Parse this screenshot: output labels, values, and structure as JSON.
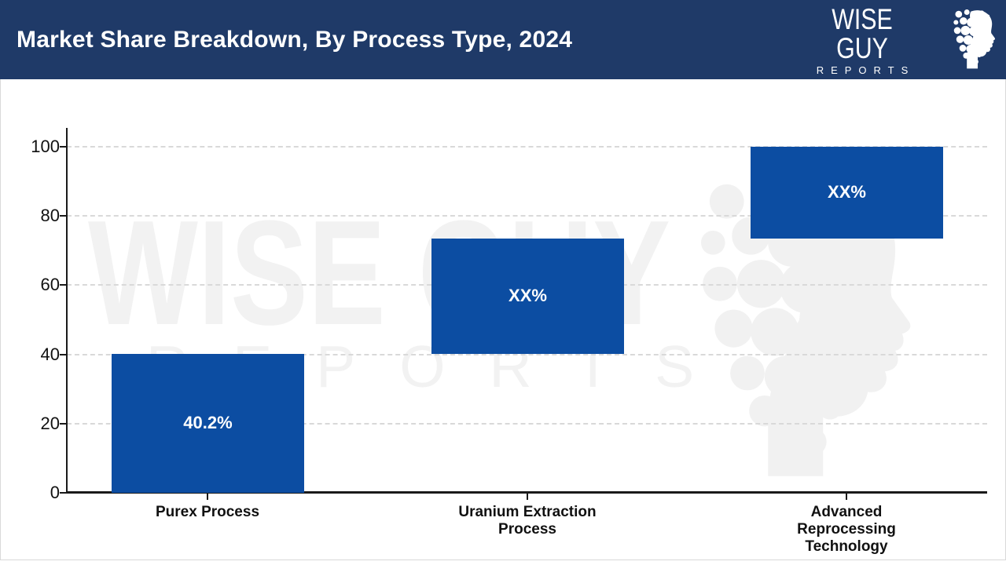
{
  "header": {
    "title": "Market Share Breakdown, By Process Type, 2024",
    "logo": {
      "name": "WISE GUY",
      "subtitle": "REPORTS",
      "face_icon": "dot-face-profile-icon"
    }
  },
  "watermark": {
    "name": "WISE GUY",
    "subtitle": "REPORTS",
    "face_icon": "dot-face-profile-icon"
  },
  "colors": {
    "header_bg": "#1f3a68",
    "header_text": "#ffffff",
    "bar_fill": "#0c4da2",
    "bar_label": "#ffffff",
    "gridline": "#d9d9d9",
    "axis": "#1a1a1a",
    "tick_label": "#111111",
    "watermark": "#f2f2f2",
    "card_border": "#d9d9d9"
  },
  "chart_data": {
    "type": "bar",
    "subtype": "waterfall",
    "title": "Market Share Breakdown, By Process Type, 2024",
    "categories": [
      "Purex Process",
      "Uranium Extraction\nProcess",
      "Advanced\nReprocessing\nTechnology"
    ],
    "segments": [
      {
        "category": "Purex Process",
        "label": "40.2%",
        "start": 0,
        "end": 40.2
      },
      {
        "category": "Uranium Extraction Process",
        "label": "XX%",
        "start": 40.2,
        "end": 73.5
      },
      {
        "category": "Advanced Reprocessing Technology",
        "label": "XX%",
        "start": 73.5,
        "end": 100
      }
    ],
    "ylim": [
      0,
      100
    ],
    "yticks": [
      0,
      20,
      40,
      60,
      80,
      100
    ],
    "xlabel": "",
    "ylabel": "",
    "grid": "horizontal-dashed",
    "legend": "none",
    "bar_color": "#0c4da2"
  }
}
